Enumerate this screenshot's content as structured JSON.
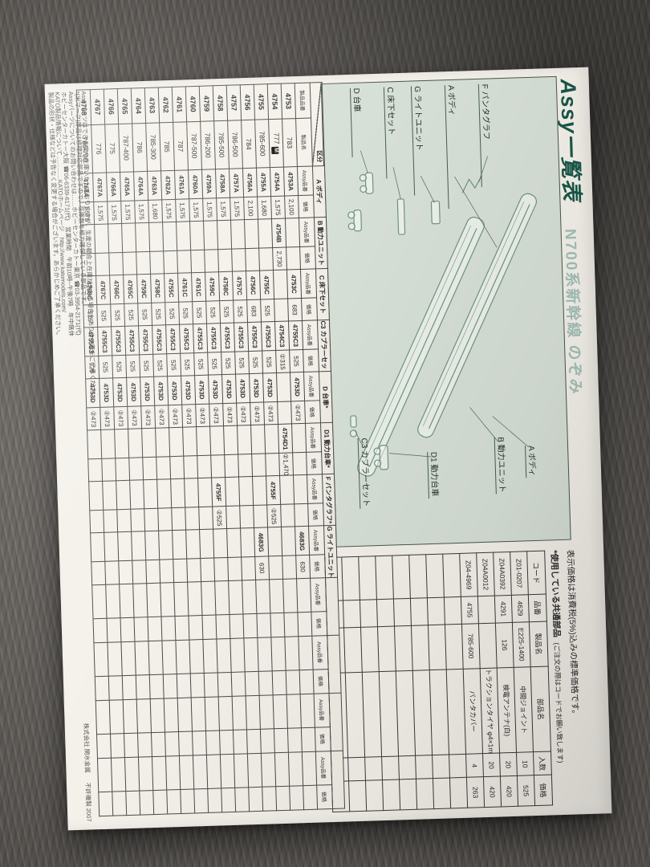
{
  "title": {
    "main": "Assy一覧表",
    "sub": "N700系新幹線 のぞみ"
  },
  "diagram": {
    "left_labels": [
      "F パンタグラフ",
      "A ボディ",
      "G ライトユニット",
      "C 床下セット",
      "D 台車"
    ],
    "right_labels": [
      "A ボディ",
      "B 動力ユニット",
      "D1 動力台車",
      "C3 カプラーセット"
    ]
  },
  "notes": {
    "price_note": "表示価格は消費税(5%)込みの標準価格です。",
    "common_parts_title": "*使用している共通部品",
    "common_parts_sub": "(ご注文の際はコードでお願い致します)"
  },
  "common_parts_table": {
    "headers": [
      "コード",
      "品番",
      "製品名",
      "部品名",
      "入数",
      "価格"
    ],
    "rows": [
      [
        "Z01-0207",
        "4629",
        "E225-1400",
        "中間ジョイント",
        "10",
        "525"
      ],
      [
        "Z04A0392",
        "4291",
        "126",
        "検電アンテナ(白)",
        "20",
        "420"
      ],
      [
        "Z04A0012",
        "",
        "",
        "トラクションタイヤ φ4×1mm",
        "20",
        "420"
      ],
      [
        "Z04-4969",
        "4755",
        "785-600",
        "パンタカバー",
        "4",
        "263"
      ]
    ],
    "empty_rows": 8
  },
  "main_table": {
    "corner_label": "区分",
    "row_headers": [
      "製品品番",
      "製品名"
    ],
    "sub_headers": [
      "Assy品番",
      "価格"
    ],
    "motor_mark": "M",
    "groups": [
      "A ボディ",
      "B 動力ユニット",
      "C 床下セット",
      "C3 カプラーセット*",
      "D 台車*",
      "D1 動力台車*",
      "F パンタグラフ*",
      "G ライトユニット",
      "",
      "",
      "",
      ""
    ],
    "rows": [
      {
        "no": "4753",
        "name": "783",
        "motor": false,
        "cells": [
          [
            "4753A",
            "2,100"
          ],
          [
            "",
            ""
          ],
          [
            "4753C",
            "683"
          ],
          [
            "4755C3",
            "525"
          ],
          [
            "4753D",
            "②473"
          ],
          [
            "",
            ""
          ],
          [
            "",
            ""
          ],
          [
            "4683G",
            "630"
          ],
          [
            "",
            ""
          ],
          [
            "",
            ""
          ],
          [
            "",
            ""
          ],
          [
            "",
            ""
          ]
        ]
      },
      {
        "no": "4754",
        "name": "777",
        "motor": true,
        "cells": [
          [
            "4754A",
            "1,575"
          ],
          [
            "4754B",
            "2,730"
          ],
          [
            "",
            ""
          ],
          [
            "4754C3",
            "②315"
          ],
          [
            "",
            ""
          ],
          [
            "4754D1",
            "②1,470"
          ],
          [
            "",
            ""
          ],
          [
            "",
            ""
          ],
          [
            "",
            ""
          ],
          [
            "",
            ""
          ],
          [
            "",
            ""
          ],
          [
            "",
            ""
          ]
        ]
      },
      {
        "no": "4755",
        "name": "785-600",
        "motor": false,
        "cells": [
          [
            "4755A",
            "1,680"
          ],
          [
            "",
            ""
          ],
          [
            "4755C",
            "525"
          ],
          [
            "4755C3",
            "525"
          ],
          [
            "4753D",
            "②473"
          ],
          [
            "",
            ""
          ],
          [
            "4755F",
            "②525"
          ],
          [
            "",
            ""
          ],
          [
            "",
            ""
          ],
          [
            "",
            ""
          ],
          [
            "",
            ""
          ],
          [
            "",
            ""
          ]
        ]
      },
      {
        "no": "4756",
        "name": "784",
        "motor": false,
        "cells": [
          [
            "4756A",
            "2,100"
          ],
          [
            "",
            ""
          ],
          [
            "4756C",
            "683"
          ],
          [
            "4755C3",
            "525"
          ],
          [
            "4753D",
            "②473"
          ],
          [
            "",
            ""
          ],
          [
            "",
            ""
          ],
          [
            "4683G",
            "630"
          ],
          [
            "",
            ""
          ],
          [
            "",
            ""
          ],
          [
            "",
            ""
          ],
          [
            "",
            ""
          ]
        ]
      },
      {
        "no": "4757",
        "name": "786-500",
        "motor": false,
        "cells": [
          [
            "4757A",
            "1,575"
          ],
          [
            "",
            ""
          ],
          [
            "4757C",
            "525"
          ],
          [
            "4755C3",
            "525"
          ],
          [
            "4753D",
            "②473"
          ],
          [
            "",
            ""
          ],
          [
            "",
            ""
          ],
          [
            "",
            ""
          ],
          [
            "",
            ""
          ],
          [
            "",
            ""
          ],
          [
            "",
            ""
          ],
          [
            "",
            ""
          ]
        ]
      },
      {
        "no": "4758",
        "name": "785-500",
        "motor": false,
        "cells": [
          [
            "4758A",
            "1,575"
          ],
          [
            "",
            ""
          ],
          [
            "4758C",
            "525"
          ],
          [
            "4755C3",
            "525"
          ],
          [
            "4753D",
            "②473"
          ],
          [
            "",
            ""
          ],
          [
            "",
            ""
          ],
          [
            "",
            ""
          ],
          [
            "",
            ""
          ],
          [
            "",
            ""
          ],
          [
            "",
            ""
          ],
          [
            "",
            ""
          ]
        ]
      },
      {
        "no": "4759",
        "name": "786-200",
        "motor": false,
        "cells": [
          [
            "4759A",
            "1,575"
          ],
          [
            "",
            ""
          ],
          [
            "4759C",
            "525"
          ],
          [
            "4755C3",
            "525"
          ],
          [
            "4753D",
            "②473"
          ],
          [
            "",
            ""
          ],
          [
            "4755F",
            "②525"
          ],
          [
            "",
            ""
          ],
          [
            "",
            ""
          ],
          [
            "",
            ""
          ],
          [
            "",
            ""
          ],
          [
            "",
            ""
          ]
        ]
      },
      {
        "no": "4760",
        "name": "787-500",
        "motor": false,
        "cells": [
          [
            "4760A",
            "1,575"
          ],
          [
            "",
            ""
          ],
          [
            "4761C",
            "525"
          ],
          [
            "4755C3",
            "525"
          ],
          [
            "4753D",
            "②473"
          ],
          [
            "",
            ""
          ],
          [
            "",
            ""
          ],
          [
            "",
            ""
          ],
          [
            "",
            ""
          ],
          [
            "",
            ""
          ],
          [
            "",
            ""
          ],
          [
            "",
            ""
          ]
        ]
      },
      {
        "no": "4761",
        "name": "787",
        "motor": false,
        "cells": [
          [
            "4761A",
            "1,575"
          ],
          [
            "",
            ""
          ],
          [
            "4761C",
            "525"
          ],
          [
            "4755C3",
            "525"
          ],
          [
            "4753D",
            "②473"
          ],
          [
            "",
            ""
          ],
          [
            "",
            ""
          ],
          [
            "",
            ""
          ],
          [
            "",
            ""
          ],
          [
            "",
            ""
          ],
          [
            "",
            ""
          ],
          [
            "",
            ""
          ]
        ]
      },
      {
        "no": "4762",
        "name": "785",
        "motor": false,
        "cells": [
          [
            "4762A",
            "1,575"
          ],
          [
            "",
            ""
          ],
          [
            "4755C",
            "525"
          ],
          [
            "4755C3",
            "525"
          ],
          [
            "4753D",
            "②473"
          ],
          [
            "",
            ""
          ],
          [
            "",
            ""
          ],
          [
            "",
            ""
          ],
          [
            "",
            ""
          ],
          [
            "",
            ""
          ],
          [
            "",
            ""
          ],
          [
            "",
            ""
          ]
        ]
      },
      {
        "no": "4763",
        "name": "785-300",
        "motor": false,
        "cells": [
          [
            "4763A",
            "1,680"
          ],
          [
            "",
            ""
          ],
          [
            "4758C",
            "525"
          ],
          [
            "4755C3",
            "525"
          ],
          [
            "4753D",
            "②473"
          ],
          [
            "",
            ""
          ],
          [
            "",
            ""
          ],
          [
            "",
            ""
          ],
          [
            "",
            ""
          ],
          [
            "",
            ""
          ],
          [
            "",
            ""
          ],
          [
            "",
            ""
          ]
        ]
      },
      {
        "no": "4764",
        "name": "786",
        "motor": false,
        "cells": [
          [
            "4764A",
            "1,575"
          ],
          [
            "",
            ""
          ],
          [
            "4759C",
            "525"
          ],
          [
            "4755C3",
            "525"
          ],
          [
            "4753D",
            "②473"
          ],
          [
            "",
            ""
          ],
          [
            "",
            ""
          ],
          [
            "",
            ""
          ],
          [
            "",
            ""
          ],
          [
            "",
            ""
          ],
          [
            "",
            ""
          ],
          [
            "",
            ""
          ]
        ]
      },
      {
        "no": "4765",
        "name": "787-400",
        "motor": false,
        "cells": [
          [
            "4765A",
            "1,575"
          ],
          [
            "",
            ""
          ],
          [
            "4765C",
            "525"
          ],
          [
            "4755C3",
            "525"
          ],
          [
            "4753D",
            "②473"
          ],
          [
            "",
            ""
          ],
          [
            "",
            ""
          ],
          [
            "",
            ""
          ],
          [
            "",
            ""
          ],
          [
            "",
            ""
          ],
          [
            "",
            ""
          ],
          [
            "",
            ""
          ]
        ]
      },
      {
        "no": "4766",
        "name": "775",
        "motor": false,
        "cells": [
          [
            "4766A",
            "1,575"
          ],
          [
            "",
            ""
          ],
          [
            "4766C",
            "525"
          ],
          [
            "4755C3",
            "525"
          ],
          [
            "4753D",
            "②473"
          ],
          [
            "",
            ""
          ],
          [
            "",
            ""
          ],
          [
            "",
            ""
          ],
          [
            "",
            ""
          ],
          [
            "",
            ""
          ],
          [
            "",
            ""
          ],
          [
            "",
            ""
          ]
        ]
      },
      {
        "no": "4767",
        "name": "776",
        "motor": false,
        "cells": [
          [
            "4767A",
            "1,575"
          ],
          [
            "",
            ""
          ],
          [
            "4767C",
            "525"
          ],
          [
            "4755C3",
            "525"
          ],
          [
            "4753D",
            "②473"
          ],
          [
            "",
            ""
          ],
          [
            "",
            ""
          ],
          [
            "",
            ""
          ],
          [
            "",
            ""
          ],
          [
            "",
            ""
          ],
          [
            "",
            ""
          ],
          [
            "",
            ""
          ]
        ]
      },
      {
        "no": "4768",
        "name": "786-700",
        "motor": false,
        "cells": [
          [
            "4768A",
            "1,575"
          ],
          [
            "",
            ""
          ],
          [
            "4768C",
            "525"
          ],
          [
            "4755C3",
            "525"
          ],
          [
            "4753D",
            "②473"
          ],
          [
            "",
            ""
          ],
          [
            "",
            ""
          ],
          [
            "",
            ""
          ],
          [
            "",
            ""
          ],
          [
            "",
            ""
          ],
          [
            "",
            ""
          ],
          [
            "",
            ""
          ]
        ]
      }
    ]
  },
  "fine_print": [
    "Assyパーツはできる限り在庫いたしておりますが、生産の都合上在庫がきれる場合もあります事をご了承ください。",
    "*(米マーク)部品は修理対応部品ですので、在庫数を極力確保している部品です。",
    "Assyパーツについてのお問い合わせは……ホビーセンターカトー東京 ☎03-3954-2171(代)",
    "ホビーセンターカトー大阪 ☎06-6339-6171(代)　営業時間　午前10時~午後7時　年中無休",
    "KATO製品情報について…………KATOホームページ　http://www.katomodels.com/",
    "製品の形状・仕様などは予告なく変更する場合がございます。あらかじめご了承ください。"
  ],
  "footer": {
    "company": "株式会社 関水金属",
    "copyright": "不許複製 2007"
  }
}
